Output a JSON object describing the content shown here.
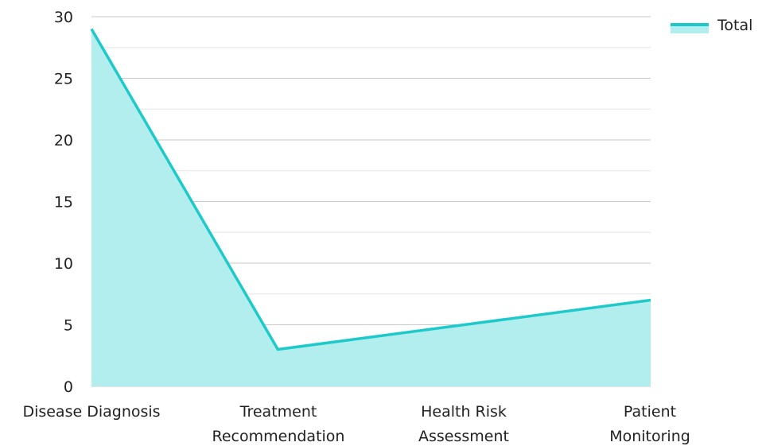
{
  "chart_data": {
    "type": "area",
    "categories": [
      [
        "Disease Diagnosis"
      ],
      [
        "Treatment",
        "Recommendation"
      ],
      [
        "Health Risk",
        "Assessment"
      ],
      [
        "Patient",
        "Monitoring"
      ]
    ],
    "series": [
      {
        "name": "Total",
        "values": [
          29,
          3,
          5,
          7
        ]
      }
    ],
    "ylim": [
      0,
      30
    ],
    "yticks": [
      "0",
      "5",
      "10",
      "15",
      "20",
      "25",
      "30"
    ],
    "grid": true,
    "legend_position": "top-right",
    "colors": {
      "line": "#1ec9c9",
      "fill": "#b3eeee",
      "grid": "#d0d0d0"
    }
  }
}
